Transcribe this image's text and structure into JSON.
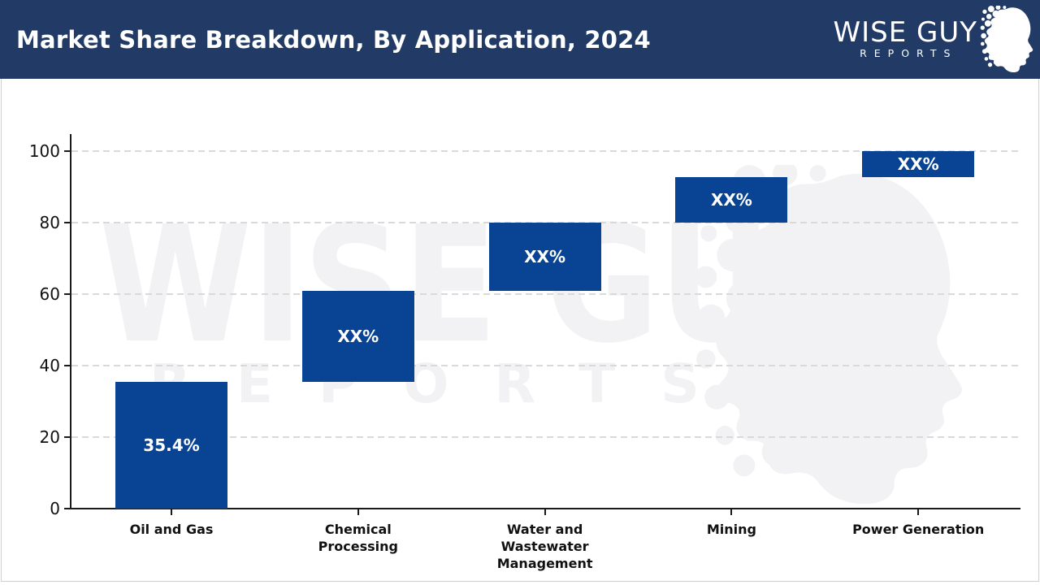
{
  "header": {
    "title": "Market Share Breakdown, By Application, 2024",
    "logo": {
      "line1": "WISE GUY",
      "line2": "REPORTS"
    }
  },
  "watermark": {
    "line1": "WISE GUY",
    "line2": "REPORTS"
  },
  "chart_data": {
    "type": "bar",
    "variant": "waterfall",
    "title": "Market Share Breakdown, By Application, 2024",
    "categories": [
      "Oil and Gas",
      "Chemical Processing",
      "Water and Wastewater Management",
      "Mining",
      "Power Generation"
    ],
    "category_label_lines": [
      [
        "Oil and Gas"
      ],
      [
        "Chemical",
        "Processing"
      ],
      [
        "Water and",
        "Wastewater",
        "Management"
      ],
      [
        "Mining"
      ],
      [
        "Power Generation"
      ]
    ],
    "segments": [
      {
        "category": "Oil and Gas",
        "start": 0,
        "end": 35.4,
        "label": "35.4%"
      },
      {
        "category": "Chemical Processing",
        "start": 35.4,
        "end": 61.0,
        "label": "XX%"
      },
      {
        "category": "Water and Wastewater Management",
        "start": 61.0,
        "end": 80.1,
        "label": "XX%"
      },
      {
        "category": "Mining",
        "start": 80.1,
        "end": 92.8,
        "label": "XX%"
      },
      {
        "category": "Power Generation",
        "start": 92.8,
        "end": 100.0,
        "label": "XX%"
      }
    ],
    "yticks": [
      0,
      20,
      40,
      60,
      80,
      100
    ],
    "ylim": [
      0,
      105
    ],
    "xlabel": "",
    "ylabel": "",
    "grid": "horizontal-dashed",
    "legend": "none",
    "colors": {
      "bar": "#084394",
      "header_bg": "#213a66",
      "grid": "#d9d9d9",
      "axis": "#1a1a1a",
      "bar_label": "#ffffff",
      "watermark": "#f2f2f4"
    }
  }
}
